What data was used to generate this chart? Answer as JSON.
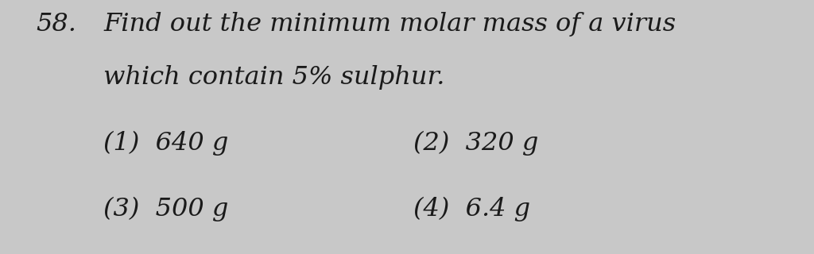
{
  "background_color": "#c8c8c8",
  "question_number": "58.",
  "question_line1": "Find out the minimum molar mass of a virus",
  "question_line2": "which contain 5% sulphur.",
  "option1": "(1)  640 g",
  "option2": "(2)  320 g",
  "option3": "(3)  500 g",
  "option4": "(4)  6.4 g",
  "text_color": "#1a1a1a",
  "font_size_question": 23,
  "font_size_options": 23,
  "fig_width": 10.24,
  "fig_height": 3.2,
  "dpi": 100
}
